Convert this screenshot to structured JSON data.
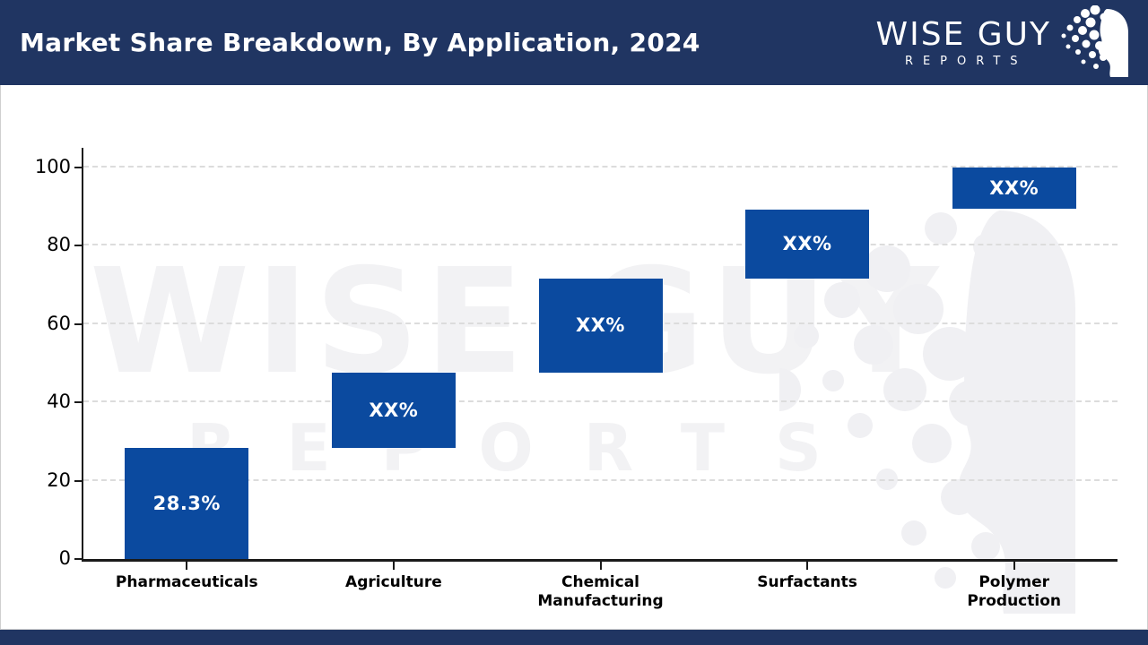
{
  "header": {
    "title": "Market Share Breakdown, By Application, 2024",
    "logo": {
      "brand_line1": "WISE GUY",
      "brand_line2": "REPORTS"
    }
  },
  "watermark": {
    "line1": "WISE GUY",
    "line2": "REPORTS"
  },
  "chart_data": {
    "type": "bar",
    "subtype": "waterfall",
    "title": "Market Share Breakdown, By Application, 2024",
    "categories": [
      "Pharmaceuticals",
      "Agriculture",
      "Chemical Manufacturing",
      "Surfactants",
      "Polymer Production"
    ],
    "segments": [
      {
        "category": "Pharmaceuticals",
        "start": 0,
        "end": 28.3,
        "label": "28.3%"
      },
      {
        "category": "Agriculture",
        "start": 28.3,
        "end": 47.6,
        "label": "XX%"
      },
      {
        "category": "Chemical Manufacturing",
        "start": 47.6,
        "end": 71.6,
        "label": "XX%"
      },
      {
        "category": "Surfactants",
        "start": 71.7,
        "end": 89.3,
        "label": "XX%"
      },
      {
        "category": "Polymer Production",
        "start": 89.5,
        "end": 100,
        "label": "XX%"
      }
    ],
    "xlabel": "",
    "ylabel": "",
    "yticks": [
      0,
      20,
      40,
      60,
      80,
      100
    ],
    "ylim": [
      0,
      105
    ],
    "grid": "horizontal-dashed",
    "legend": "none"
  },
  "colors": {
    "brand_navy": "#203562",
    "bar_blue": "#0b4a9f",
    "gridline": "#dcdcdc",
    "axis_black": "#1a1a1a",
    "watermark_gray": "#f2f2f4",
    "label_white": "#ffffff",
    "text_black": "#000000"
  }
}
